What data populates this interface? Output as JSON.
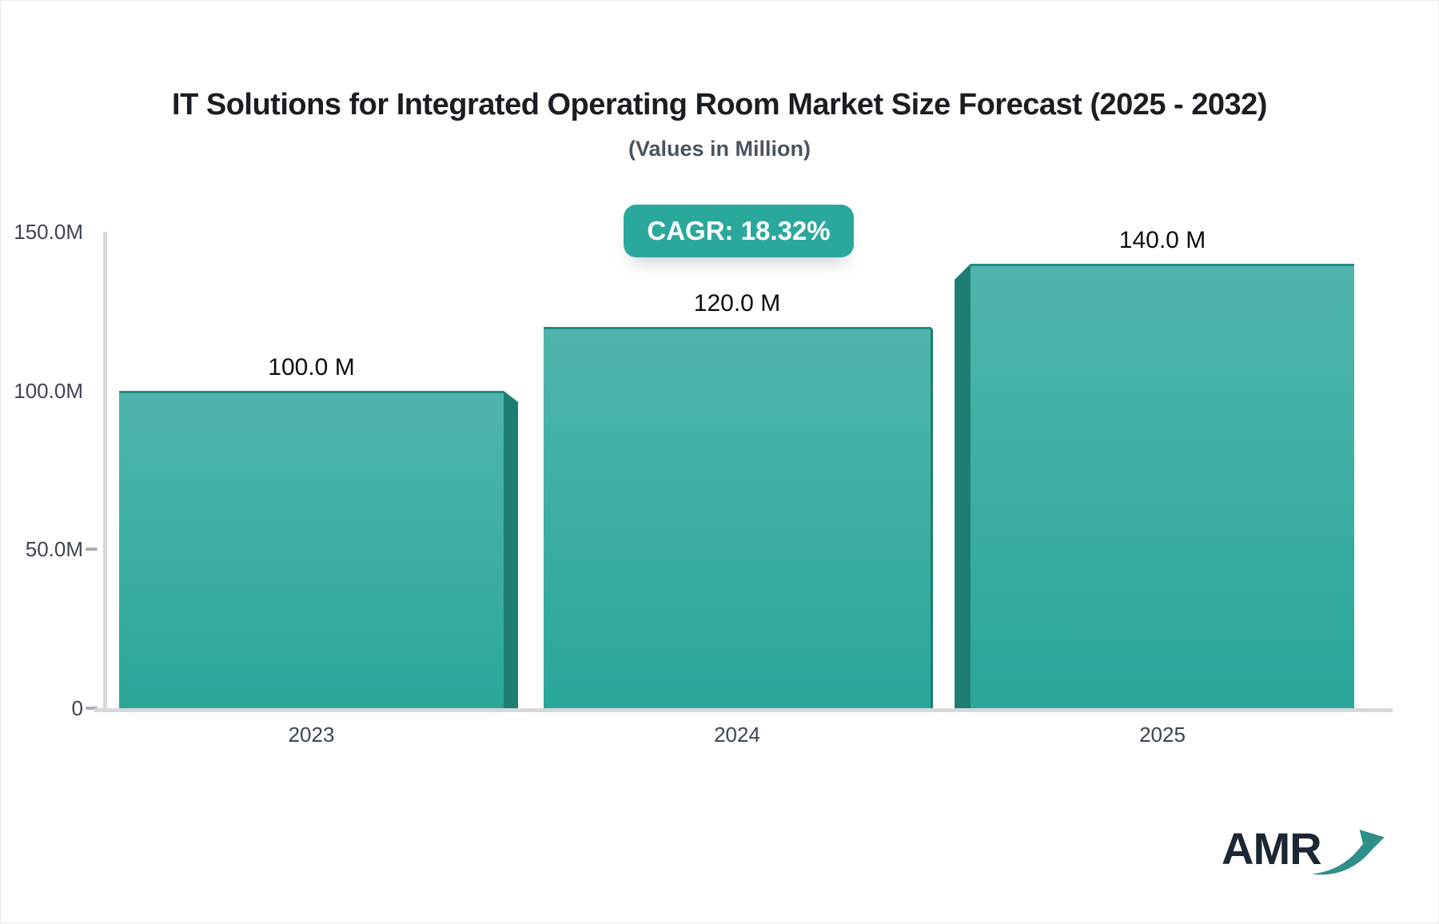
{
  "chart_data": {
    "type": "bar",
    "title": "IT Solutions for Integrated Operating Room Market Size Forecast (2025 - 2032)",
    "subtitle": "(Values in Million)",
    "cagr_badge": "CAGR: 18.32%",
    "categories": [
      "2023",
      "2024",
      "2025"
    ],
    "values": [
      100,
      120,
      140
    ],
    "bar_labels": [
      "100.0 M",
      "120.0 M",
      "140.0 M"
    ],
    "ylim": [
      0,
      150
    ],
    "yticks": [
      {
        "label": "150.0M",
        "value": 150,
        "tick_dash": false
      },
      {
        "label": "100.0M",
        "value": 100,
        "tick_dash": false
      },
      {
        "label": "50.0M",
        "value": 50,
        "tick_dash": true
      },
      {
        "label": "0",
        "value": 0,
        "tick_dash": true
      }
    ],
    "grid": false,
    "legend": "none",
    "colors": {
      "bar_gradient_top": "#4fb5ac",
      "bar_gradient_bottom": "#2aa79a",
      "bar_side_shade": "#1e7d72",
      "bar_top_edge": "#1f8e81",
      "badge_background": "#2aa89b",
      "badge_text": "#ffffff",
      "axis_line": "#d5d8dd",
      "ytick_text": "#3d4653",
      "xtick_text": "#3a4552",
      "value_label_text": "#0d0d0d",
      "title_text": "#191d24",
      "subtitle_text": "#4a5560"
    }
  },
  "branding": {
    "logo_text": "AMR",
    "logo_text_color": "#1b2733",
    "logo_arrow_color": "#2f8f8a"
  }
}
